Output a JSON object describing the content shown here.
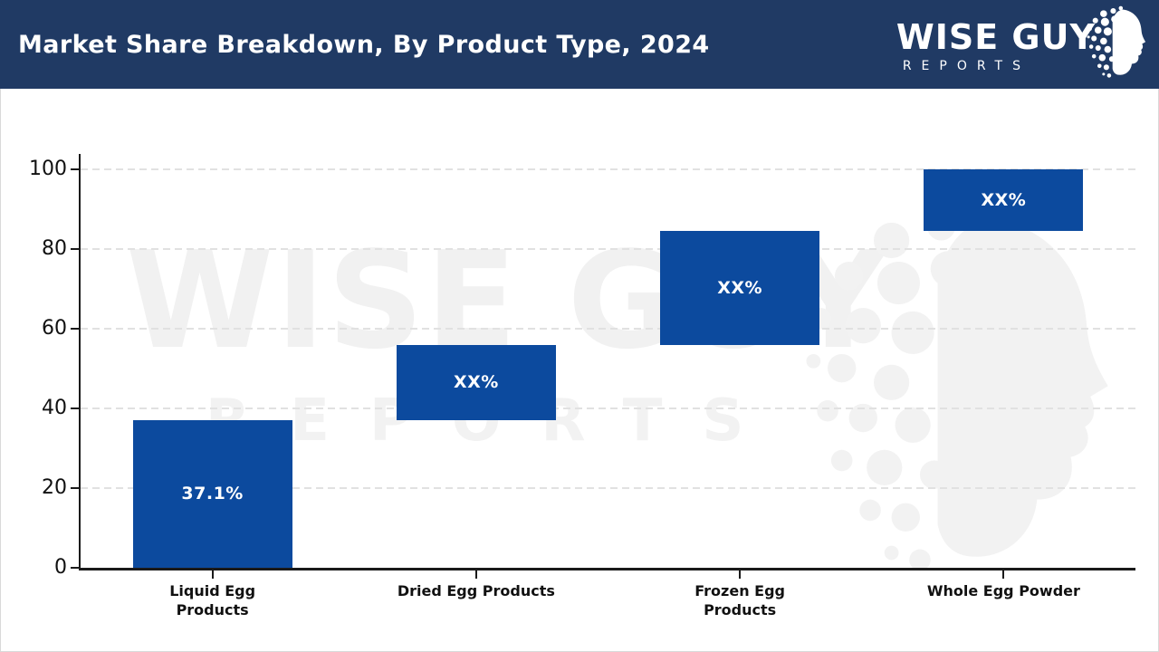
{
  "header": {
    "title": "Market Share Breakdown, By Product Type, 2024",
    "bg_color": "#203A64",
    "logo": {
      "line1": "WISE GUY",
      "line2": "REPORTS"
    }
  },
  "watermark": {
    "line1": "WISE GUY",
    "line2": "REPORTS"
  },
  "chart_data": {
    "type": "bar",
    "subtype": "waterfall",
    "title": "Market Share Breakdown, By Product Type, 2024",
    "categories": [
      "Liquid Egg\nProducts",
      "Dried Egg Products",
      "Frozen Egg\nProducts",
      "Whole Egg Powder"
    ],
    "series": [
      {
        "name": "Market Share (%)",
        "segments": [
          {
            "category": "Liquid Egg Products",
            "start": 0,
            "end": 37.1,
            "label": "37.1%"
          },
          {
            "category": "Dried Egg Products",
            "start": 37.1,
            "end": 56,
            "label": "XX%"
          },
          {
            "category": "Frozen Egg Products",
            "start": 56,
            "end": 84.5,
            "label": "XX%"
          },
          {
            "category": "Whole Egg Powder",
            "start": 84.5,
            "end": 100,
            "label": "XX%"
          }
        ]
      }
    ],
    "xlabel": "",
    "ylabel": "",
    "ylim": [
      0,
      100
    ],
    "yticks": [
      0,
      20,
      40,
      60,
      80,
      100
    ],
    "grid": "dashed-horizontal",
    "legend": "none",
    "bar_color": "#0C4A9E",
    "bar_label_color": "#FFFFFF",
    "axis_color": "#1a1a1a"
  }
}
